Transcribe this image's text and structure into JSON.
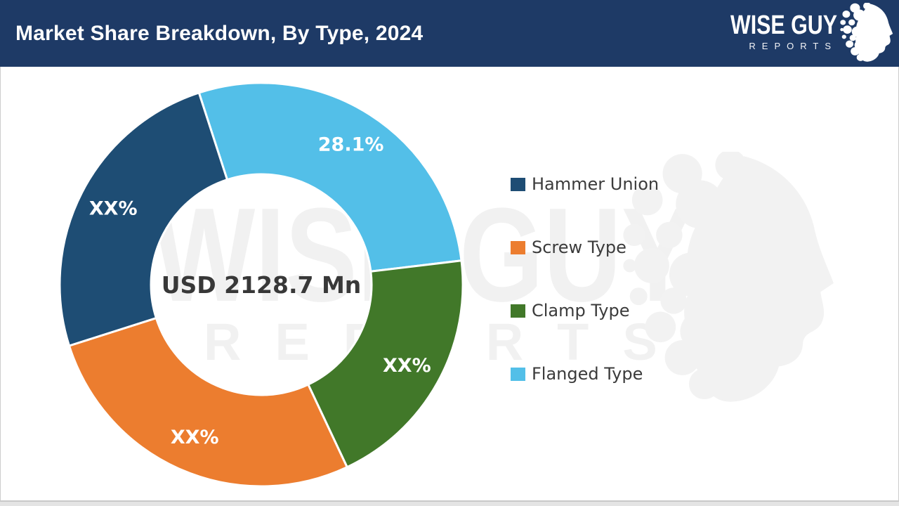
{
  "header": {
    "title": "Market Share Breakdown, By Type, 2024",
    "bg_color": "#1e3a66",
    "logo": {
      "line1": "WISE GUY",
      "line2": "REPORTS"
    }
  },
  "watermark": {
    "line1": "WISE GUY",
    "line2": "REPORTS",
    "color": "#f1f1f1"
  },
  "chart_data": {
    "type": "pie",
    "subtype": "donut",
    "title": "Market Share Breakdown, By Type, 2024",
    "center_label": "USD 2128.7 Mn",
    "start_angle_deg": -18,
    "legend_position": "right",
    "segments": [
      {
        "name": "Hammer Union",
        "color": "#1e4d74",
        "value_pct": 24.9,
        "label": "XX%"
      },
      {
        "name": "Screw Type",
        "color": "#ec7d2f",
        "value_pct": 27.1,
        "label": "XX%"
      },
      {
        "name": "Clamp Type",
        "color": "#417829",
        "value_pct": 19.9,
        "label": "XX%"
      },
      {
        "name": "Flanged Type",
        "color": "#53bfe8",
        "value_pct": 28.1,
        "label": "28.1%"
      }
    ]
  },
  "colors": {
    "header_bg": "#1e3a66",
    "text_dark": "#3b3b3b",
    "segment_label": "#ffffff",
    "watermark": "#f1f1f1"
  }
}
